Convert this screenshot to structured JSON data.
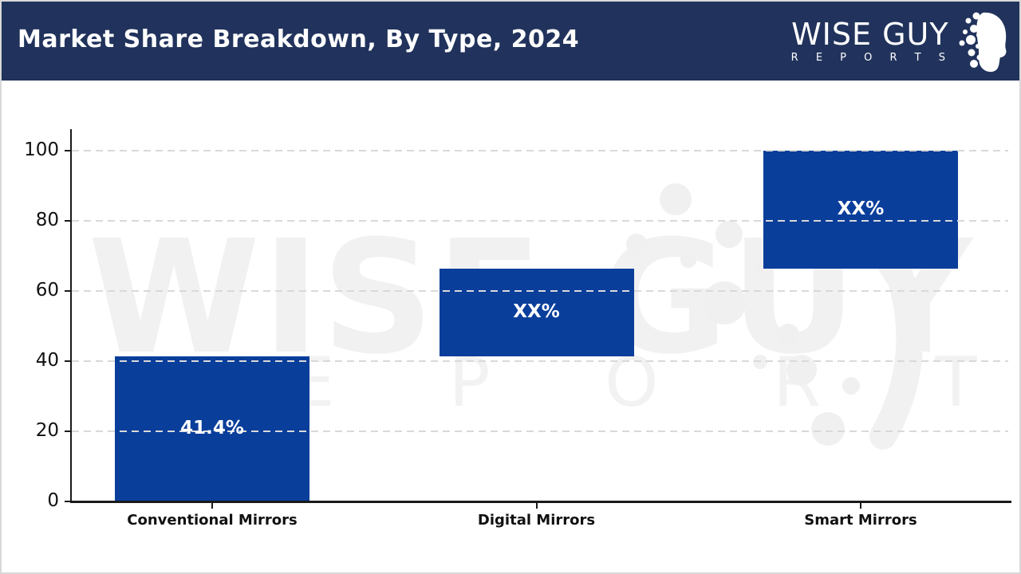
{
  "header": {
    "title": "Market Share Breakdown, By Type, 2024",
    "bg_color": "#21335c",
    "logo": {
      "line1": "WISE GUY",
      "line2": "R E P O R T S"
    }
  },
  "watermark": {
    "line1": "WISE GUY",
    "line2": "R E P O R T S"
  },
  "chart_data": {
    "type": "bar",
    "subtype": "waterfall",
    "title": "Market Share Breakdown, By Type, 2024",
    "categories": [
      "Conventional Mirrors",
      "Digital Mirrors",
      "Smart Mirrors"
    ],
    "bars": [
      {
        "category": "Conventional Mirrors",
        "start": 0,
        "end": 41.4,
        "label": "41.4%"
      },
      {
        "category": "Digital Mirrors",
        "start": 41.4,
        "end": 66.3,
        "label": "XX%"
      },
      {
        "category": "Smart Mirrors",
        "start": 66.3,
        "end": 100,
        "label": "XX%"
      }
    ],
    "bar_color": "#0a3e9b",
    "label_color": "#ffffff",
    "yticks": [
      0,
      20,
      40,
      60,
      80,
      100
    ],
    "ylim": [
      0,
      106
    ],
    "xlabel": "",
    "ylabel": "",
    "grid": "horizontal-dashed",
    "grid_color": "#d9d9d9",
    "legend": "none"
  }
}
